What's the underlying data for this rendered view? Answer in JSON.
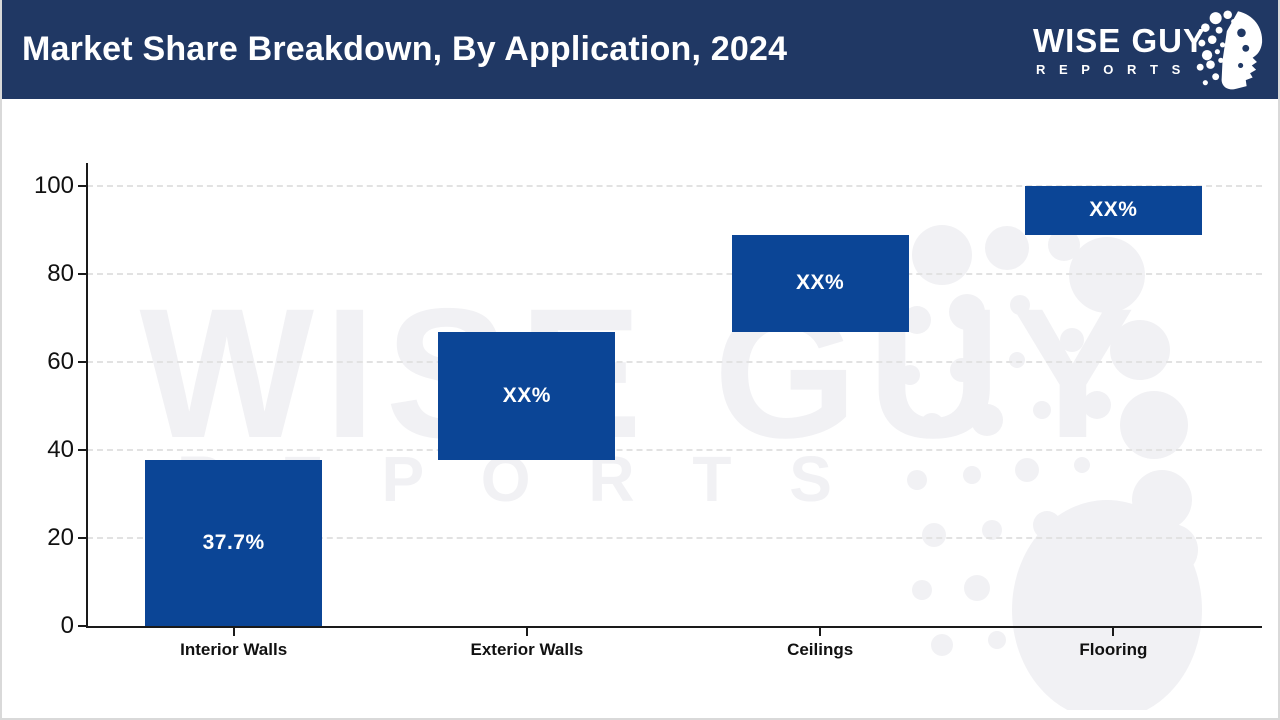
{
  "header": {
    "title": "Market Share Breakdown, By Application, 2024",
    "logo": {
      "line1": "WISE GUY",
      "line2": "R E P O R T S"
    }
  },
  "watermark": {
    "line1": "WISE GUY",
    "line2": "R E P O R T S"
  },
  "chart_data": {
    "type": "bar",
    "subtype": "waterfall",
    "title": "Market Share Breakdown, By Application, 2024",
    "categories": [
      "Interior Walls",
      "Exterior Walls",
      "Ceilings",
      "Flooring"
    ],
    "segments": [
      {
        "category": "Interior Walls",
        "start": 0,
        "end": 37.7,
        "label": "37.7%"
      },
      {
        "category": "Exterior Walls",
        "start": 37.7,
        "end": 66.9,
        "label": "XX%"
      },
      {
        "category": "Ceilings",
        "start": 66.9,
        "end": 88.9,
        "label": "XX%"
      },
      {
        "category": "Flooring",
        "start": 88.9,
        "end": 100,
        "label": "XX%"
      }
    ],
    "xlabel": "",
    "ylabel": "",
    "ylim": [
      0,
      100
    ],
    "yticks": [
      0,
      20,
      40,
      60,
      80,
      100
    ],
    "grid": "horizontal-dashed",
    "legend": "none",
    "bar_color": "#0b4596"
  },
  "colors": {
    "header_bg": "#203864",
    "bar": "#0b4596",
    "gridline": "#e2e2e2",
    "axis": "#1a1a1a",
    "watermark": "#f1f1f4",
    "page_border": "#d9d9d9"
  }
}
